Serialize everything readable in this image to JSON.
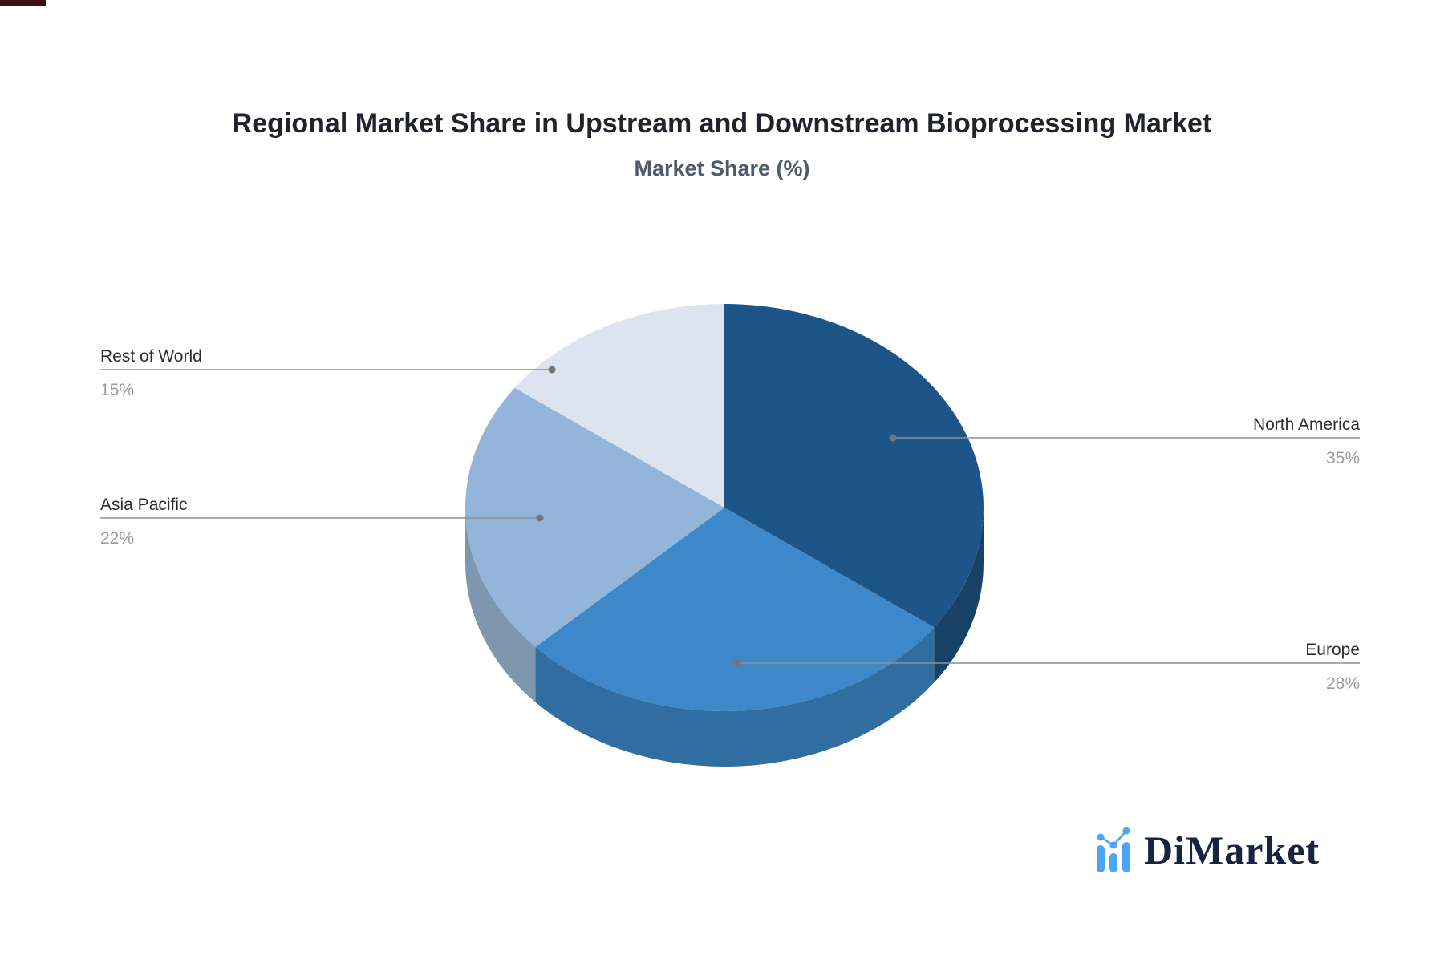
{
  "header": {
    "title": "Regional Market Share in Upstream and Downstream Bioprocessing Market",
    "subtitle": "Market Share (%)"
  },
  "chart_data": {
    "type": "pie",
    "style": "3d-extruded",
    "start_angle": "top",
    "direction": "clockwise",
    "legend_position": "none",
    "labels_layout": "leader-lines",
    "labels": [
      "North America",
      "Europe",
      "Asia Pacific",
      "Rest of World"
    ],
    "values": [
      35,
      28,
      22,
      15
    ],
    "unit": "%",
    "display_values": [
      "35%",
      "28%",
      "22%",
      "15%"
    ],
    "colors": [
      "#1d5588",
      "#3e88c9",
      "#92b5d9",
      "#dce4ef"
    ],
    "side_colors": [
      "#174165",
      "#306da1",
      "#7e97ae",
      "#b9c3d4"
    ]
  },
  "branding": {
    "logo_text": "DiMarket",
    "logo_icon": "bar-line-chart-icon",
    "icon_color": "#4ba4f4",
    "text_color": "#17243f"
  }
}
